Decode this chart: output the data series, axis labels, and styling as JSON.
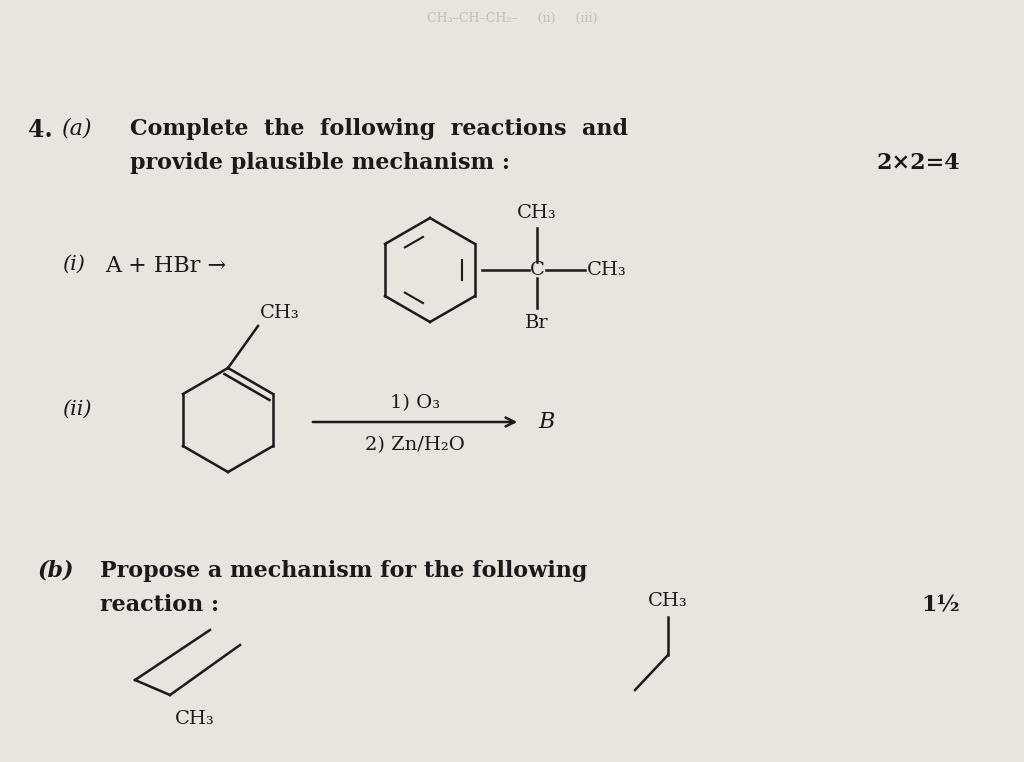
{
  "background_color": "#e8e5e0",
  "text_color": "#1a1a1a",
  "title_number": "4.",
  "part_a_label": "(a)",
  "part_a_text_line1": "Complete  the  following  reactions  and",
  "part_a_text_line2": "provide plausible mechanism :",
  "part_a_marks": "2×2=4",
  "part_i_label": "(i)",
  "part_i_reactant": "A + HBr →",
  "part_ii_label": "(ii)",
  "part_ii_reagent_line1": "1) O₃",
  "part_ii_reagent_line2": "2) Zn/H₂O",
  "part_b_label": "(b)",
  "part_b_text_line1": "Propose a mechanism for the following",
  "part_b_text_line2": "reaction :",
  "part_b_marks": "1½",
  "ch3_label": "CH₃",
  "br_label": "Br",
  "c_label": "C",
  "fontsize_main": 16,
  "fontsize_label": 15,
  "fontsize_chem": 14
}
